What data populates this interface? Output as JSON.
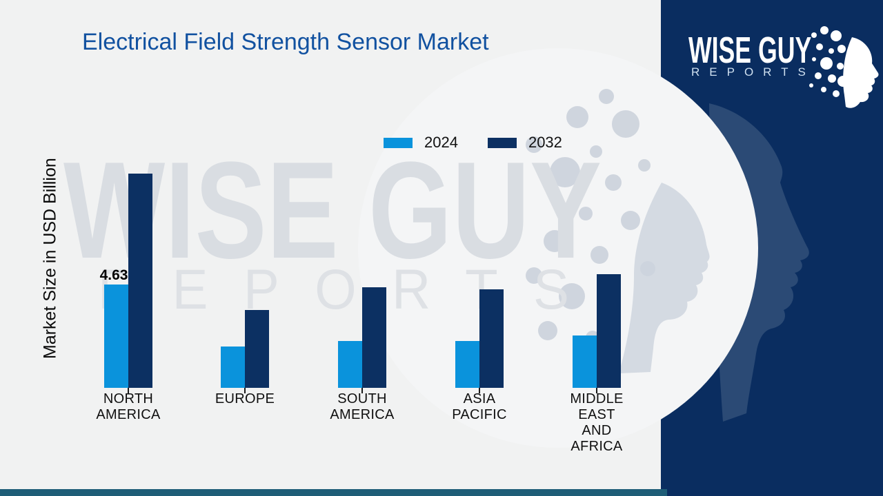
{
  "header": {
    "title": "Electrical Field Strength Sensor Market"
  },
  "brand_logo": {
    "name": "WISE GUY",
    "sub": "REPORTS"
  },
  "watermark": {
    "name": "WISE GUY",
    "sub": "REPORTS"
  },
  "chart_data": {
    "type": "bar",
    "title": "Electrical Field Strength Sensor Market",
    "ylabel": "Market Size in USD Billion",
    "xlabel": "",
    "units": "USD Billion",
    "categories": [
      "NORTH AMERICA",
      "EUROPE",
      "SOUTH AMERICA",
      "ASIA PACIFIC",
      "MIDDLE EAST AND AFRICA"
    ],
    "category_lines": [
      [
        "NORTH",
        "AMERICA"
      ],
      [
        "EUROPE"
      ],
      [
        "SOUTH",
        "AMERICA"
      ],
      [
        "ASIA",
        "PACIFIC"
      ],
      [
        "MIDDLE",
        "EAST",
        "AND",
        "AFRICA"
      ]
    ],
    "series": [
      {
        "name": "2024",
        "color": "#0a93dc",
        "values": [
          4.63,
          1.85,
          2.1,
          2.1,
          2.35
        ]
      },
      {
        "name": "2032",
        "color": "#0c3062",
        "values": [
          9.6,
          3.5,
          4.5,
          4.4,
          5.1
        ]
      }
    ],
    "data_labels": [
      {
        "series_index": 0,
        "category_index": 0,
        "text": "4.63"
      }
    ],
    "legend_position": "top-right",
    "grid": false,
    "ylim": [
      0,
      10
    ]
  },
  "colors": {
    "background": "#f1f2f2",
    "title": "#1151a0",
    "bar_2024": "#0a93dc",
    "bar_2032": "#0c3062",
    "navy_panel": "#0a2d60",
    "face_silhouette": "#2b4a75",
    "teal_strip": "#1e5d77",
    "watermark_gray": "#d9dde2",
    "watermark_sub_gray": "#dee1e5"
  }
}
